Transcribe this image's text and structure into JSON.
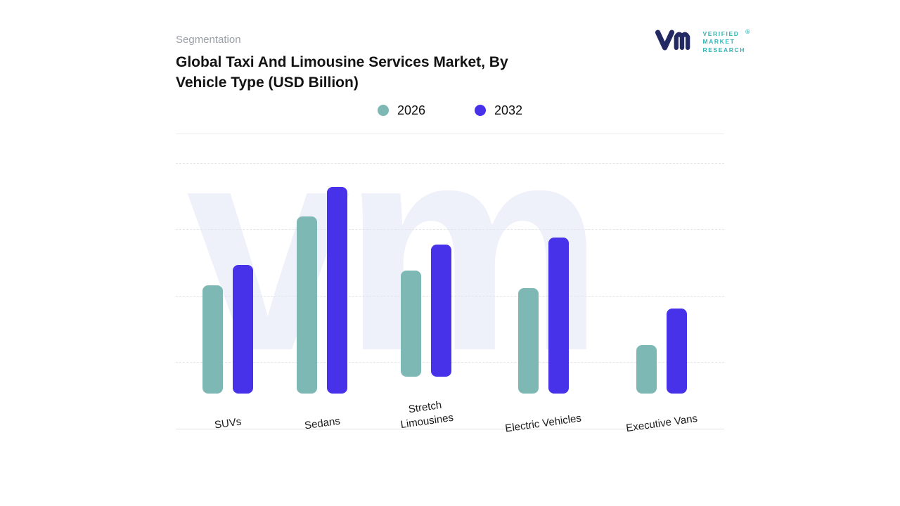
{
  "header": {
    "eyebrow": "Segmentation",
    "title_line1": "Global Taxi And Limousine Services Market, By",
    "title_line2": "Vehicle Type (USD Billion)"
  },
  "logo": {
    "line1": "VERIFIED",
    "line2": "MARKET",
    "line3": "RESEARCH",
    "registered": "®"
  },
  "watermark": {
    "text": "vm"
  },
  "chart_data": {
    "type": "bar",
    "title": "Global Taxi And Limousine Services Market, By Vehicle Type (USD Billion)",
    "categories": [
      "SUVs",
      "Sedans",
      "Stretch Limousines",
      "Electric Vehicles",
      "Executive Vans"
    ],
    "series": [
      {
        "name": "2026",
        "color": "#7db8b5",
        "values": [
          47,
          77,
          50,
          46,
          21
        ]
      },
      {
        "name": "2032",
        "color": "#4732ea",
        "values": [
          56,
          90,
          62,
          68,
          37
        ]
      }
    ],
    "ylim": [
      0,
      100
    ],
    "xlabel": "",
    "ylabel": "",
    "grid": "horizontal-dashed",
    "legend_position": "top-center",
    "y_axis_labels_visible": false
  }
}
